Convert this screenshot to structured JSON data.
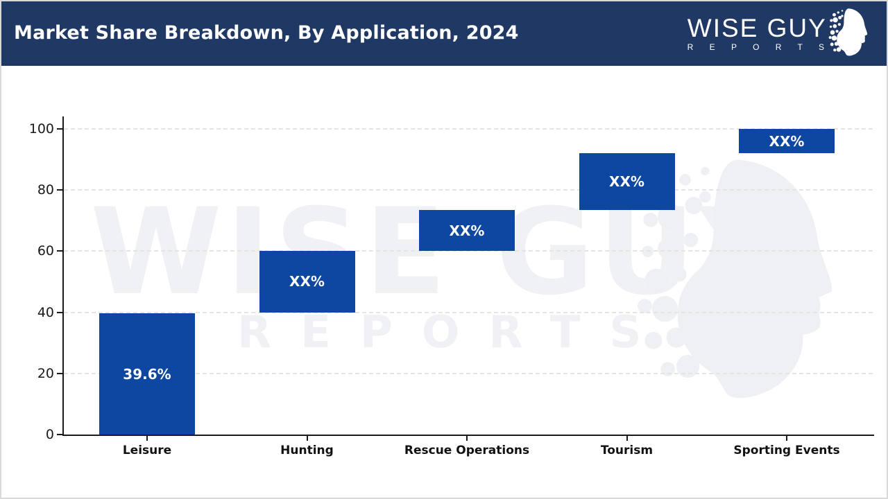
{
  "header": {
    "title": "Market Share Breakdown, By Application, 2024",
    "logo": {
      "line1": "WISE GUY",
      "line2": "R E P O R T S",
      "icon": "dotted-face-profile-icon"
    }
  },
  "watermark": {
    "line1": "WISE GUY",
    "line2": "REPORTS",
    "icon": "dotted-face-profile-icon"
  },
  "chart_data": {
    "type": "bar",
    "variant": "waterfall",
    "title": "Market Share Breakdown, By Application, 2024",
    "categories": [
      "Leisure",
      "Hunting",
      "Rescue Operations",
      "Tourism",
      "Sporting Events"
    ],
    "segments": [
      {
        "category": "Leisure",
        "start": 0,
        "end": 39.6,
        "label": "39.6%"
      },
      {
        "category": "Hunting",
        "start": 40,
        "end": 60,
        "label": "XX%"
      },
      {
        "category": "Rescue Operations",
        "start": 60,
        "end": 73.5,
        "label": "XX%"
      },
      {
        "category": "Tourism",
        "start": 73.5,
        "end": 92,
        "label": "XX%"
      },
      {
        "category": "Sporting Events",
        "start": 92,
        "end": 100,
        "label": "XX%"
      }
    ],
    "xlabel": "",
    "ylabel": "",
    "yticks": [
      0,
      20,
      40,
      60,
      80,
      100
    ],
    "ylim": [
      0,
      104
    ],
    "grid": "horizontal-dashed",
    "legend": "none",
    "bar_color": "#0d47a1",
    "bar_label_color": "#ffffff",
    "header_bg_color": "#1f3864",
    "gridline_color": "#e4e4e4",
    "masked_value_text": "XX%"
  }
}
